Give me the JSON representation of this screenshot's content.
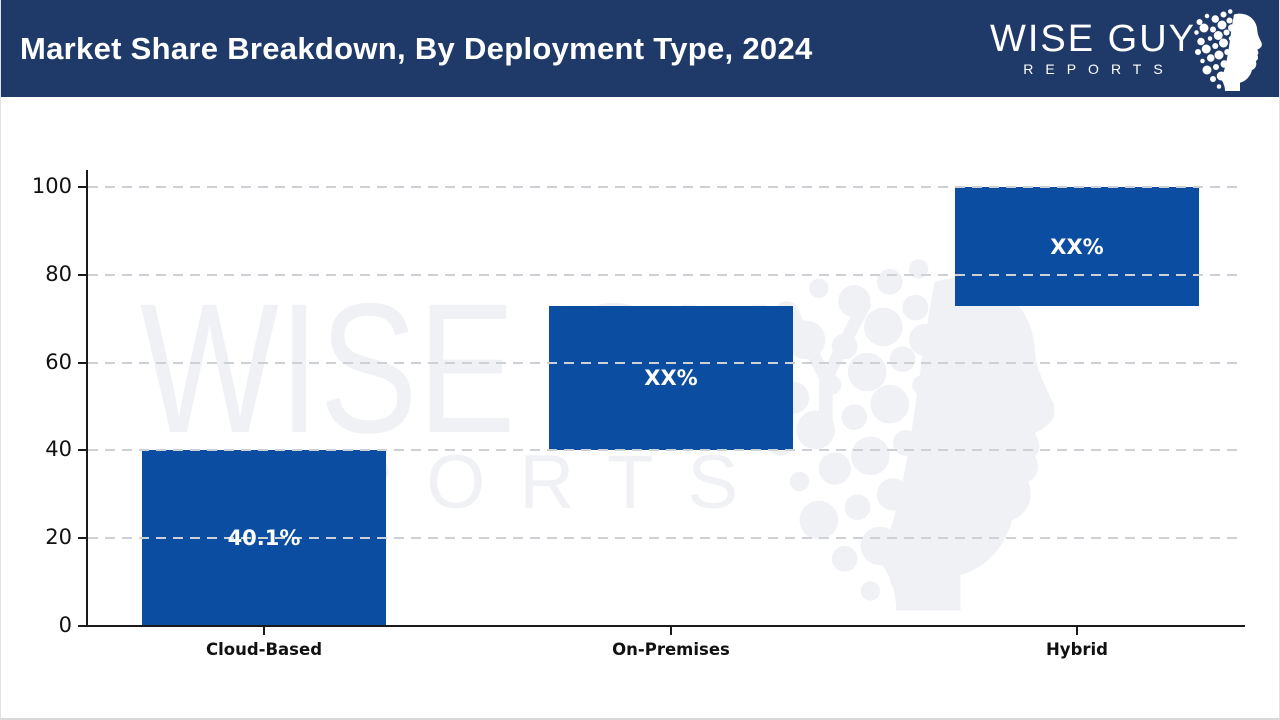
{
  "header": {
    "title": "Market Share Breakdown, By Deployment Type, 2024",
    "logo": {
      "line1": "WISE GUY",
      "line2": "REPORTS"
    }
  },
  "watermark": {
    "line1": "WISE GUY",
    "line2": "REPORTS"
  },
  "chart_data": {
    "type": "bar",
    "subtype": "waterfall",
    "title": "Market Share Breakdown, By Deployment Type, 2024",
    "categories": [
      "Cloud-Based",
      "On-Premises",
      "Hybrid"
    ],
    "segments": [
      {
        "category": "Cloud-Based",
        "start": 0,
        "end": 40.1,
        "label": "40.1%"
      },
      {
        "category": "On-Premises",
        "start": 40.1,
        "end": 72.8,
        "label": "XX%"
      },
      {
        "category": "Hybrid",
        "start": 72.8,
        "end": 100,
        "label": "XX%"
      }
    ],
    "xlabel": "",
    "ylabel": "",
    "yticks": [
      0,
      20,
      40,
      60,
      80,
      100
    ],
    "ylim": [
      0,
      104
    ],
    "grid": "horizontal-dashed",
    "legend": "none",
    "bar_color": "#0b4da1",
    "bar_label_color": "#ffffff"
  },
  "colors": {
    "header_bg": "#1f3a68",
    "bar": "#0b4da1",
    "axis": "#1a1a1a",
    "gridline": "#cdd0d4",
    "watermark": "#f0f1f4"
  }
}
